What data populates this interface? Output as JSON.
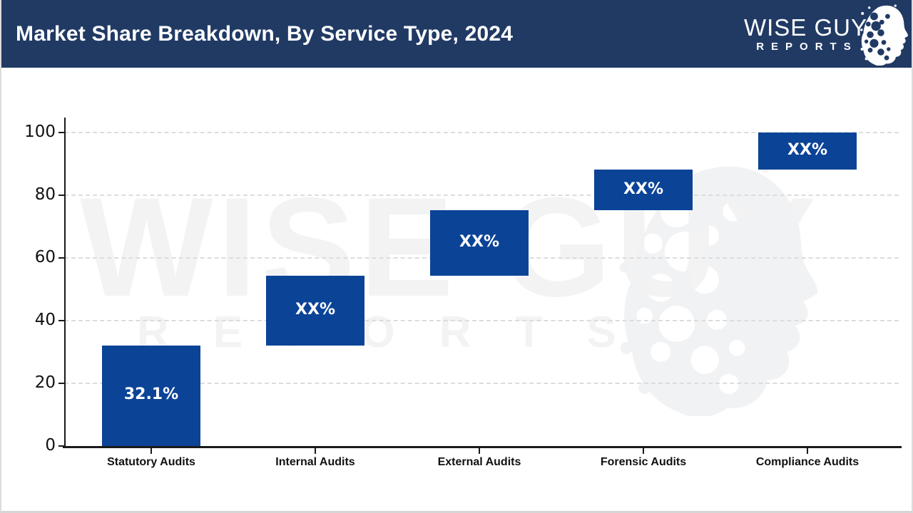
{
  "header": {
    "title": "Market Share Breakdown, By Service Type, 2024",
    "bg_color": "#203a64",
    "logo": {
      "line1": "WISE GUY",
      "line2": "REPORTS"
    }
  },
  "watermark": {
    "line1": "WISE GUY",
    "line2": "REPORTS"
  },
  "chart_data": {
    "type": "bar",
    "subtype": "floating-segment-waterfall",
    "title": "Market Share Breakdown, By Service Type, 2024",
    "categories": [
      "Statutory Audits",
      "Internal Audits",
      "External Audits",
      "Forensic Audits",
      "Compliance Audits"
    ],
    "segments": [
      {
        "category": "Statutory Audits",
        "start": 0,
        "end": 32.1,
        "label": "32.1%"
      },
      {
        "category": "Internal Audits",
        "start": 32.1,
        "end": 54.4,
        "label": "XX%"
      },
      {
        "category": "External Audits",
        "start": 54.4,
        "end": 75.2,
        "label": "XX%"
      },
      {
        "category": "Forensic Audits",
        "start": 75.2,
        "end": 88.2,
        "label": "XX%"
      },
      {
        "category": "Compliance Audits",
        "start": 88.2,
        "end": 100,
        "label": "XX%"
      }
    ],
    "xlabel": "",
    "ylabel": "",
    "y_ticks": [
      0,
      20,
      40,
      60,
      80,
      100
    ],
    "ylim": [
      0,
      105
    ],
    "grid": "horizontal-dashed",
    "legend": "none",
    "bar_color": "#0b4397",
    "label_color": "#ffffff",
    "gridline_color": "#dcdcdc",
    "axis_color": "#1a1a1a"
  }
}
